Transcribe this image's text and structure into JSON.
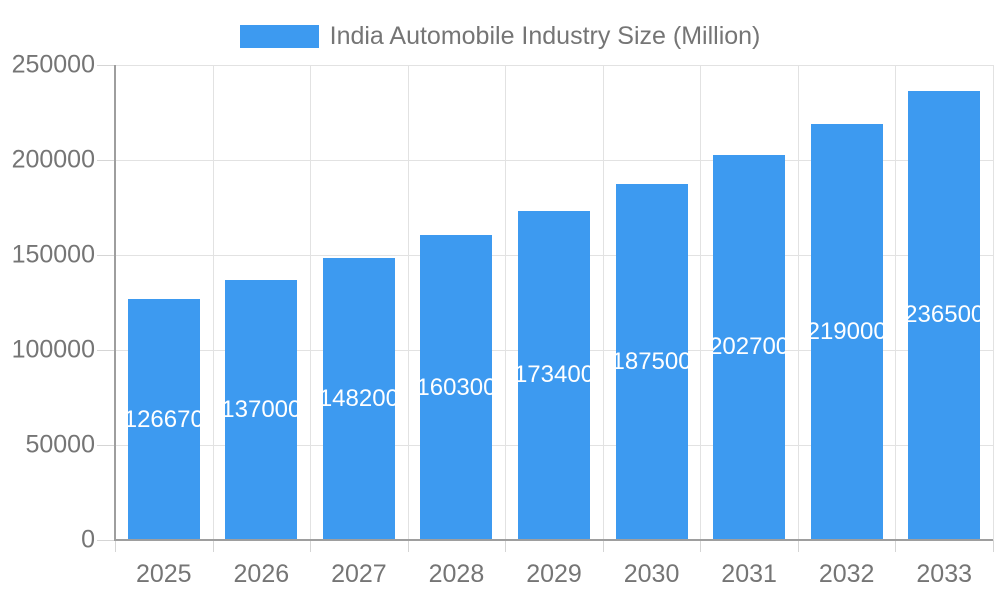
{
  "legend": {
    "label": "India Automobile Industry Size (Million)"
  },
  "colors": {
    "bar": "#3D9AF0",
    "bar_label": "#FFFFFF",
    "axis_text": "#757575",
    "grid": "#E2E2E2",
    "tick": "#D5D5D5",
    "axis_line": "#9E9E9E",
    "background": "#FFFFFF"
  },
  "chart_data": {
    "type": "bar",
    "title": "India Automobile Industry Size (Million)",
    "categories": [
      "2025",
      "2026",
      "2027",
      "2028",
      "2029",
      "2030",
      "2031",
      "2032",
      "2033"
    ],
    "values": [
      126670,
      137000,
      148200,
      160300,
      173400,
      187500,
      202700,
      219000,
      236500
    ],
    "xlabel": "",
    "ylabel": "",
    "ylim": [
      0,
      250000
    ],
    "yticks": [
      0,
      50000,
      100000,
      150000,
      200000,
      250000
    ],
    "grid": true,
    "legend_position": "top",
    "value_labels": "inside-center"
  }
}
